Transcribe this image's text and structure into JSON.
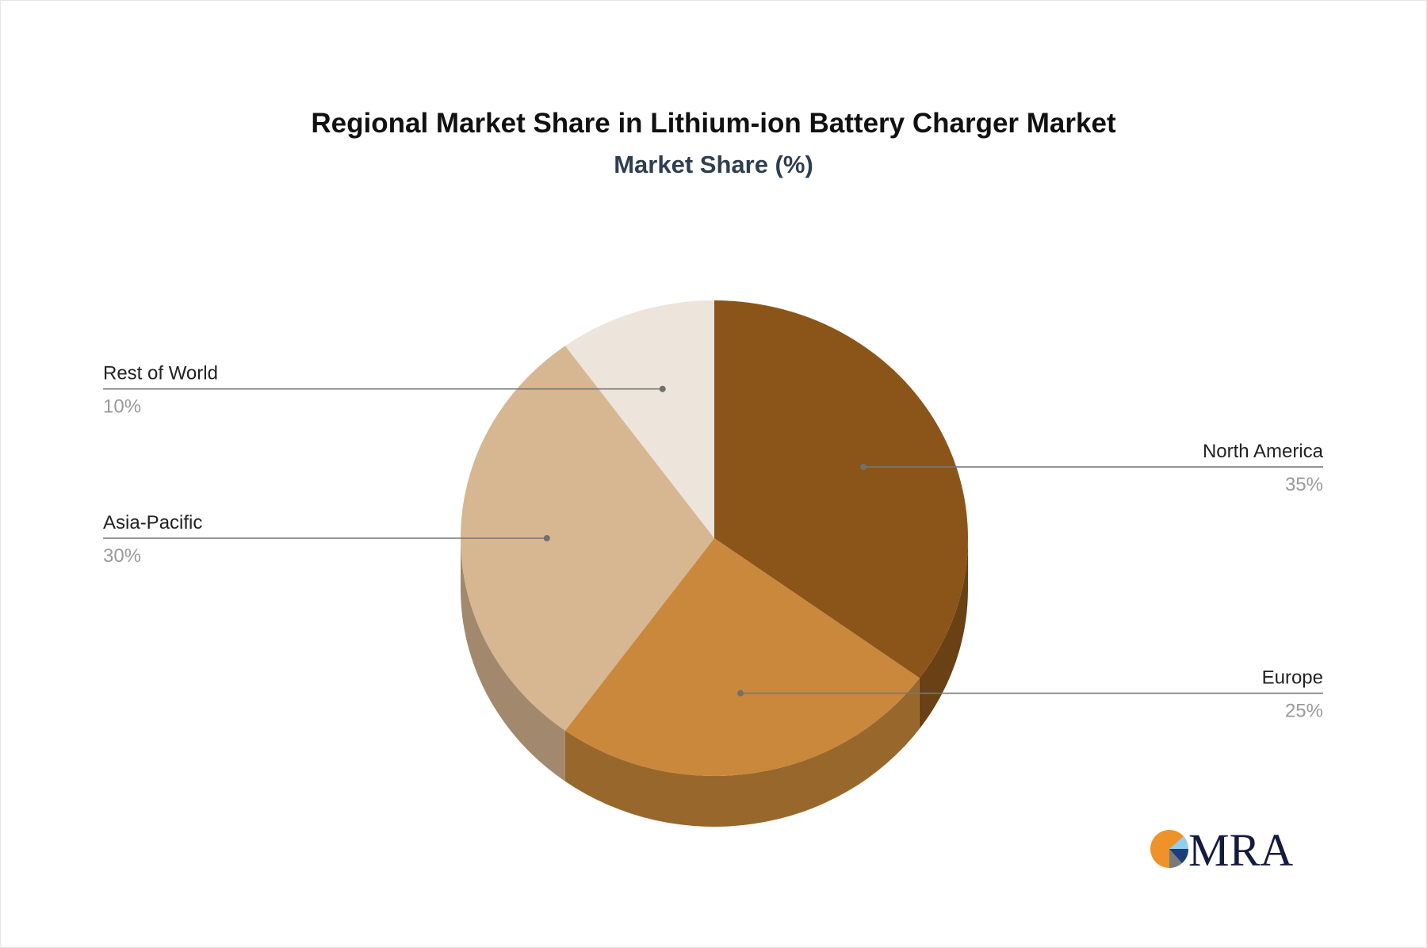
{
  "chart_data": {
    "type": "pie",
    "style": "3d",
    "title": "Regional Market Share in Lithium-ion Battery Charger Market",
    "subtitle": "Market Share (%)",
    "slices": [
      {
        "label": "North America",
        "value": 35,
        "value_label": "35%",
        "color": "#8B5519",
        "side_color": "#6A4114"
      },
      {
        "label": "Europe",
        "value": 25,
        "value_label": "25%",
        "color": "#C9883B",
        "side_color": "#98672C"
      },
      {
        "label": "Asia-Pacific",
        "value": 30,
        "value_label": "30%",
        "color": "#D7B692",
        "side_color": "#A2896D"
      },
      {
        "label": "Rest of World",
        "value": 10,
        "value_label": "10%",
        "color": "#EDE4DB",
        "side_color": "#B3ACA5"
      }
    ]
  },
  "logo": {
    "text": "MRA"
  }
}
